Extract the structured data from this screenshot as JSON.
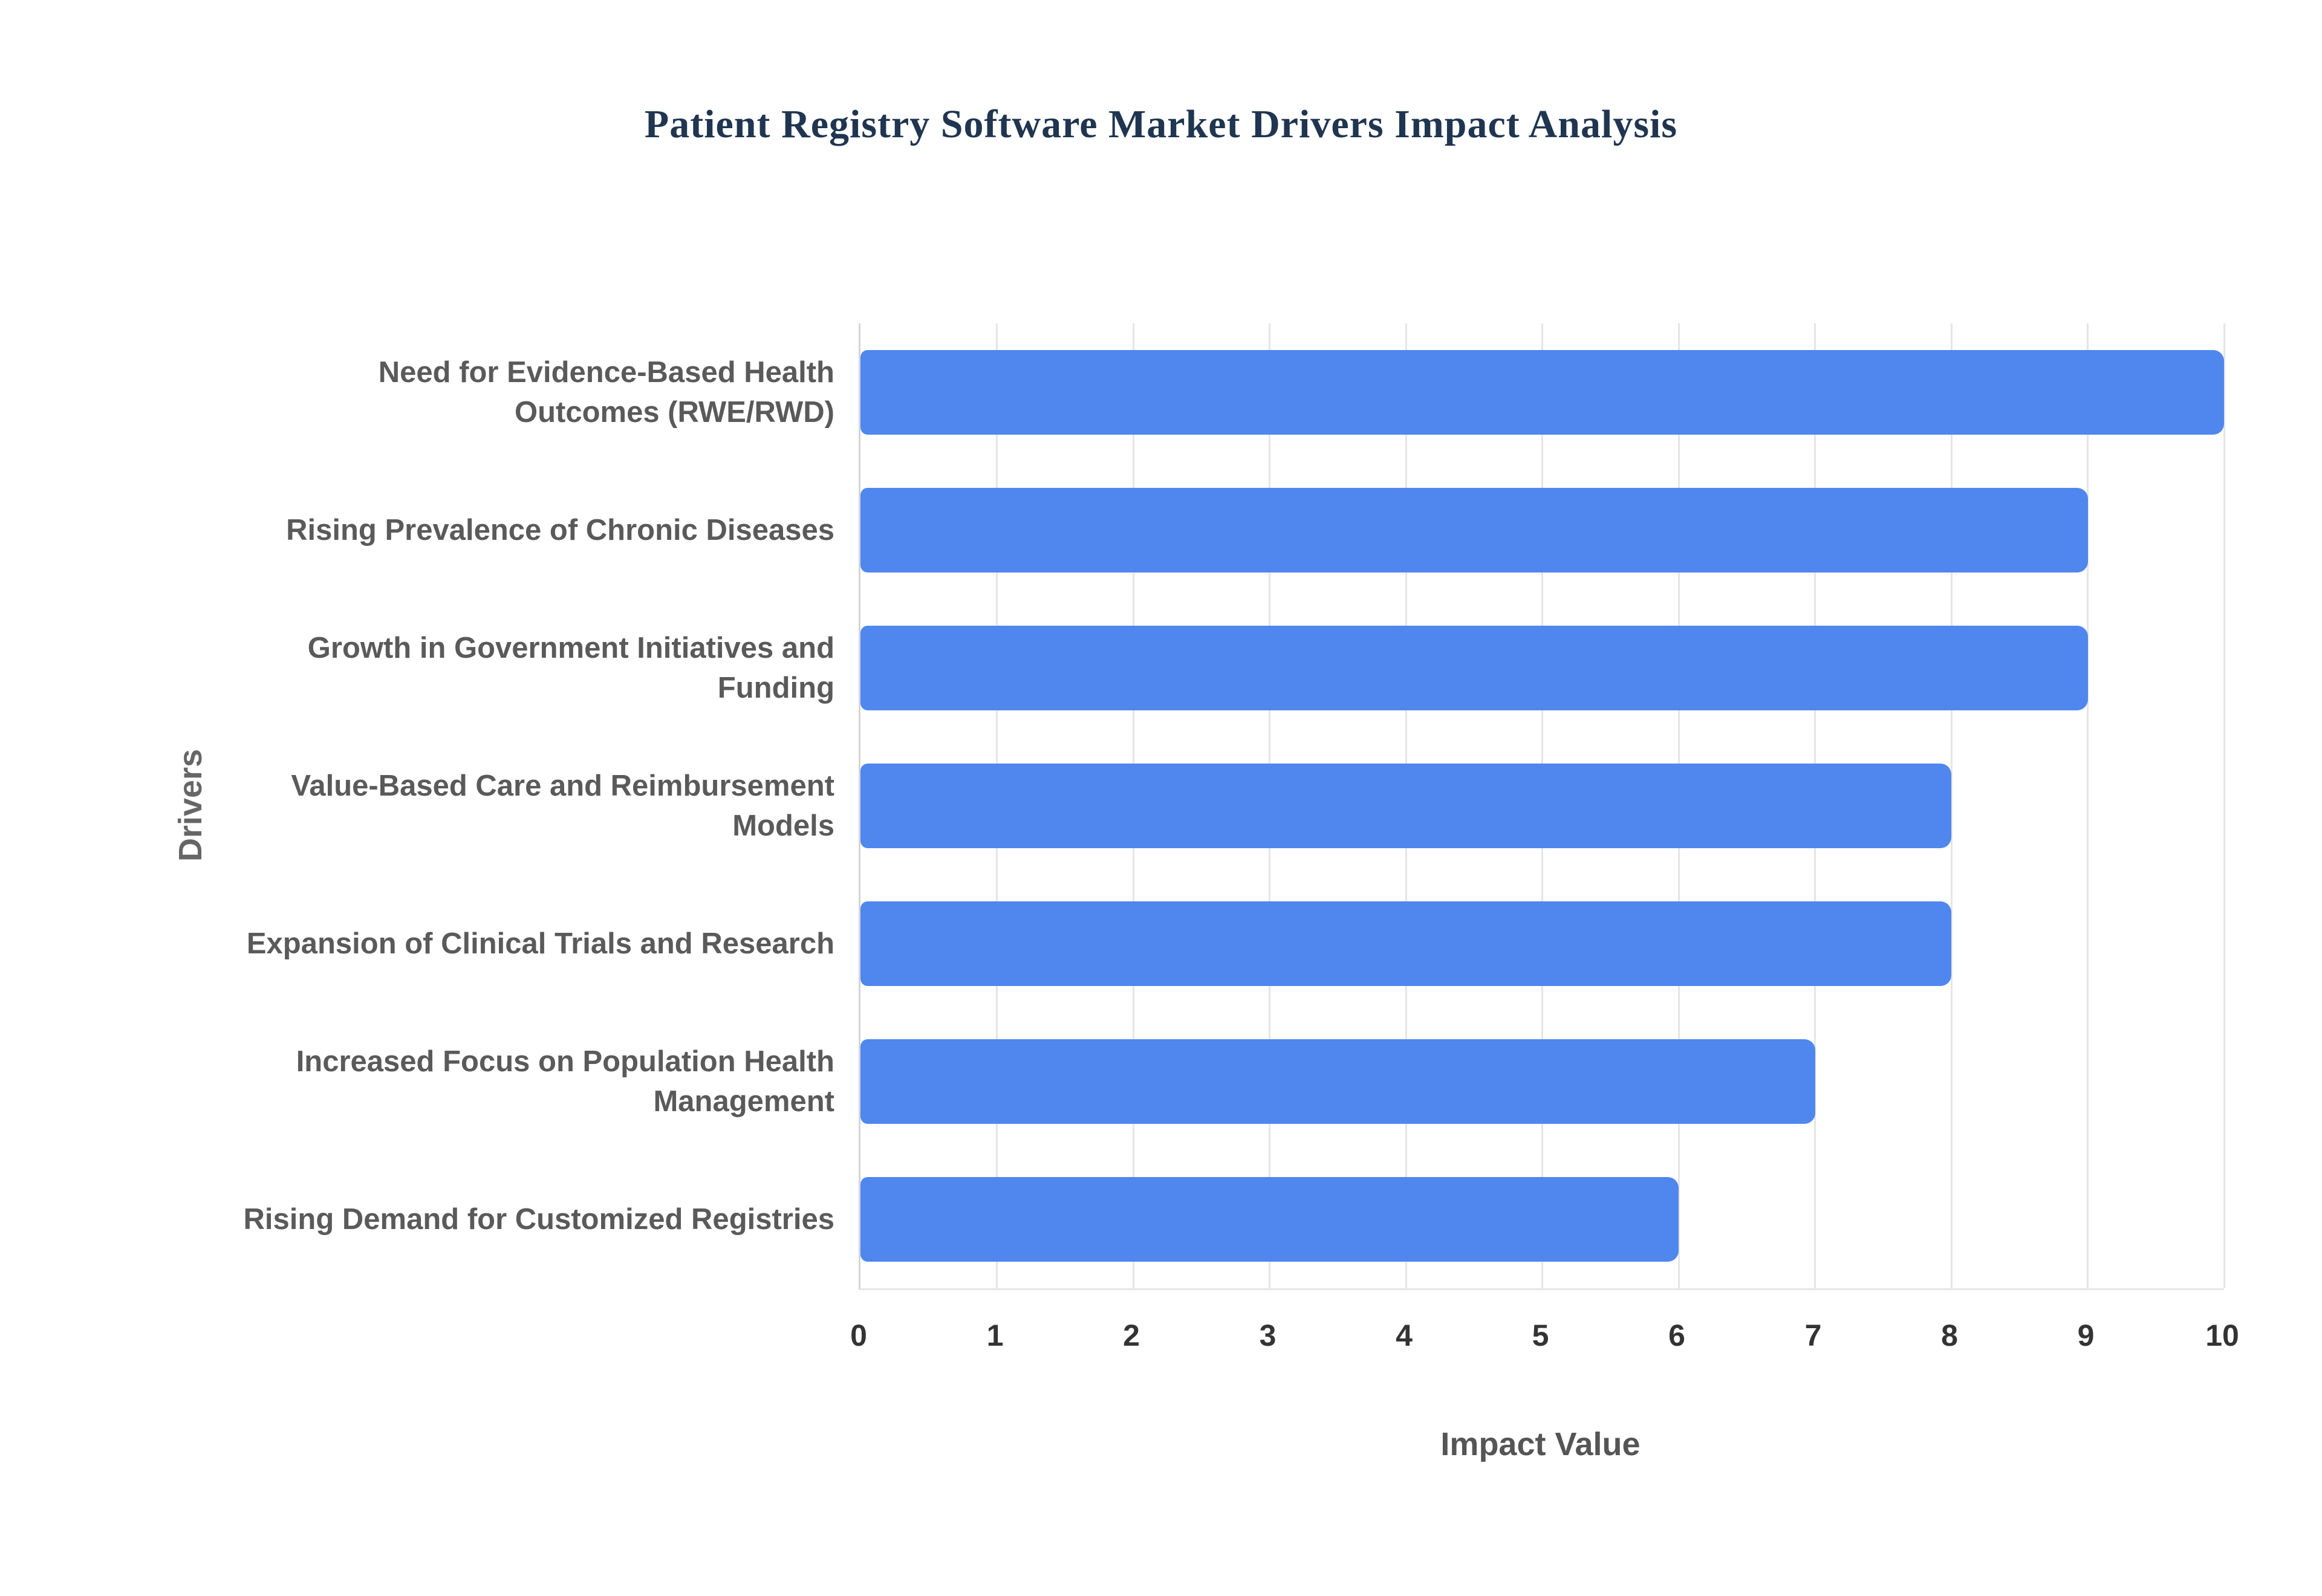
{
  "page": {
    "background": "#ffffff"
  },
  "chart_data": {
    "type": "bar",
    "orientation": "horizontal",
    "title": "Patient Registry Software Market Drivers Impact Analysis",
    "categories": [
      "Need for Evidence-Based Health Outcomes (RWE/RWD)",
      "Rising Prevalence of Chronic Diseases",
      "Growth in Government Initiatives and Funding",
      "Value-Based Care and Reimbursement Models",
      "Expansion of Clinical Trials and Research",
      "Increased Focus on Population Health Management",
      "Rising Demand for Customized Registries"
    ],
    "values": [
      10,
      9,
      9,
      8,
      8,
      7,
      6
    ],
    "xlabel": "Impact Value",
    "ylabel": "Drivers",
    "xlim": [
      0,
      10
    ],
    "x_ticks": [
      0,
      1,
      2,
      3,
      4,
      5,
      6,
      7,
      8,
      9,
      10
    ],
    "grid": true,
    "legend": "none",
    "colors": {
      "bar": "#4f87ee",
      "title": "#1f3550",
      "grid": "#e5e5e5",
      "axis_line": "#d4d4d4",
      "category_text": "#5a5a5a",
      "tick_text": "#333333",
      "axis_title_text": "#555555"
    }
  }
}
